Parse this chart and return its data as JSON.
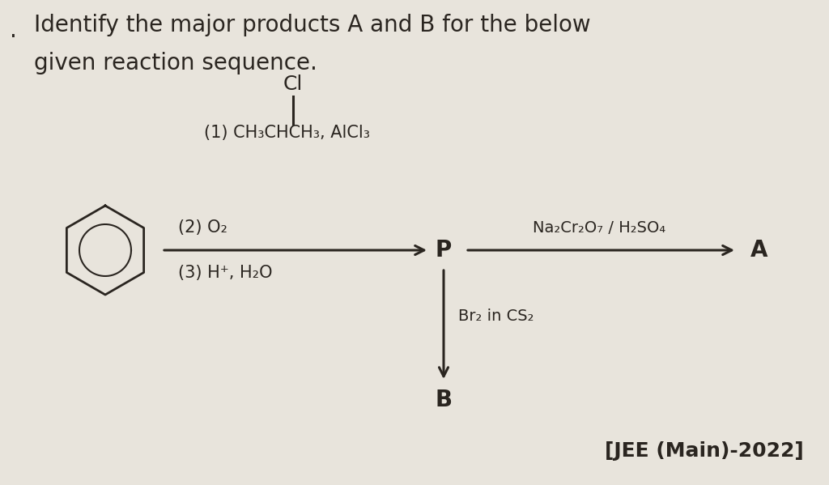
{
  "title_line1": "Identify the major products A and B for the below",
  "title_line2": "given reaction sequence.",
  "background_color": "#e8e4dc",
  "text_color": "#2a2520",
  "step1_label": "(1) CH₃CHCH₃, AlCl₃",
  "step2_label": "(2) O₂",
  "step3_label": "(3) H⁺, H₂O",
  "cl_label": "Cl",
  "reagent_top": "Na₂Cr₂O₇ / H₂SO₄",
  "reagent_bottom": "Br₂ in CS₂",
  "product_P": "P",
  "product_A": "A",
  "product_B": "B",
  "jee_label": "[JEE (Main)-2022]",
  "fig_width": 10.24,
  "fig_height": 5.99,
  "dot_label": "."
}
